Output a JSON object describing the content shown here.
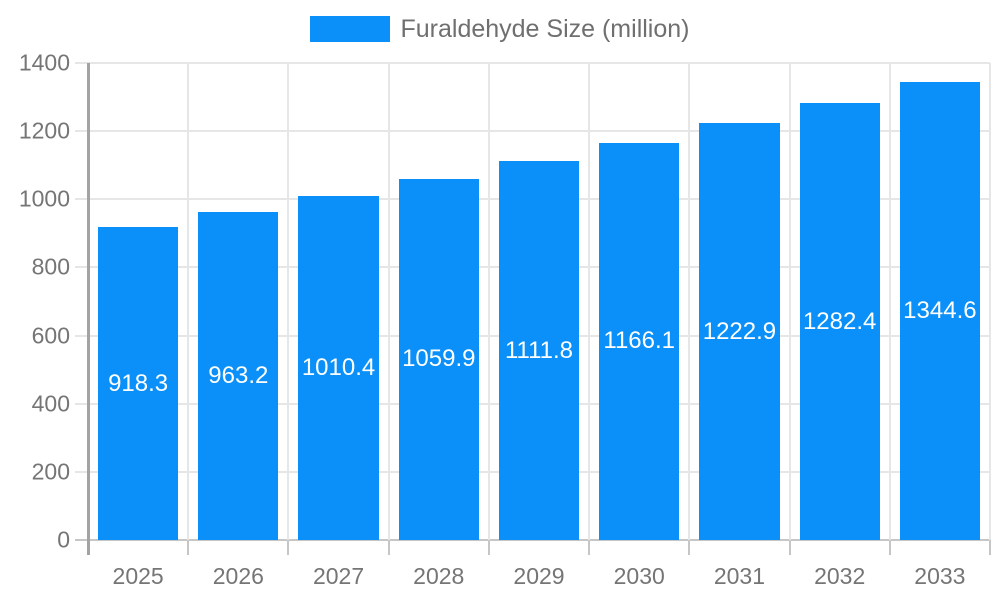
{
  "chart_data": {
    "type": "bar",
    "title": "",
    "legend": {
      "label": "Furaldehyde Size (million)",
      "position": "top"
    },
    "categories": [
      "2025",
      "2026",
      "2027",
      "2028",
      "2029",
      "2030",
      "2031",
      "2032",
      "2033"
    ],
    "series": [
      {
        "name": "Furaldehyde Size (million)",
        "values": [
          918.3,
          963.2,
          1010.4,
          1059.9,
          1111.8,
          1166.1,
          1222.9,
          1282.4,
          1344.6
        ]
      }
    ],
    "xlabel": "",
    "ylabel": "",
    "ylim": [
      0,
      1400
    ],
    "yticks": [
      0,
      200,
      400,
      600,
      800,
      1000,
      1200,
      1400
    ],
    "grid": true,
    "bar_value_labels_visible": true
  },
  "colors": {
    "bar": "#0a90f8",
    "bar_value_label": "#ffffff",
    "axis_text": "#757575",
    "legend_text": "#6f6f6f",
    "gridline": "#e6e6e6",
    "baseline": "#c6c6c6",
    "tick_line": "#c6c6c6",
    "axis_line": "#a3a3a3",
    "background": "#ffffff"
  }
}
